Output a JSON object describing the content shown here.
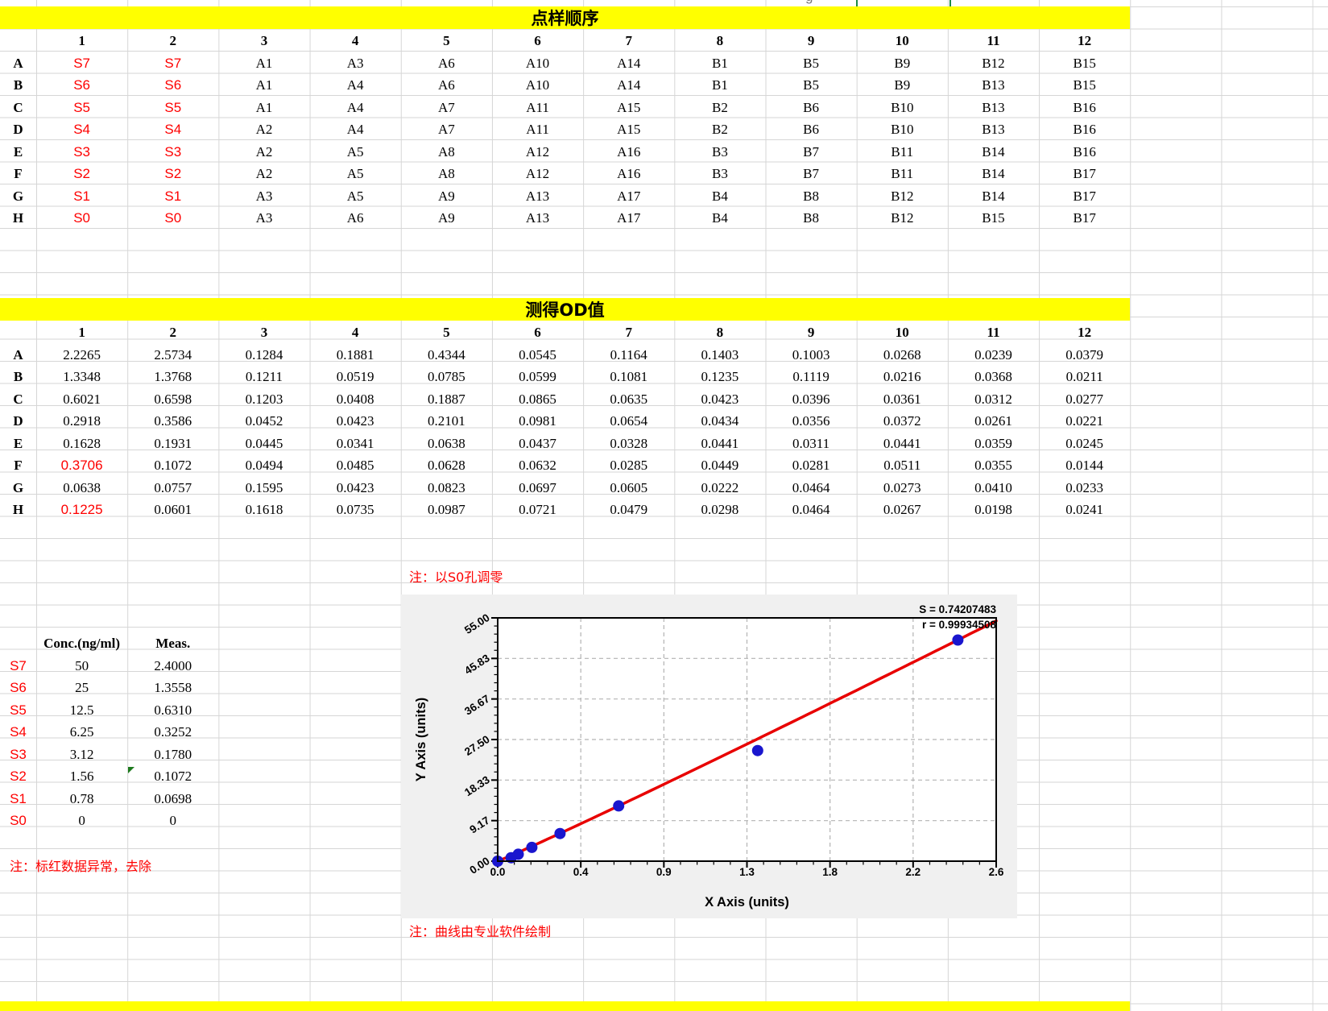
{
  "banners": {
    "plate_title": "点样顺序",
    "od_title": "测得OD值"
  },
  "plate_table": {
    "col_headers": [
      "1",
      "2",
      "3",
      "4",
      "5",
      "6",
      "7",
      "8",
      "9",
      "10",
      "11",
      "12"
    ],
    "row_headers": [
      "A",
      "B",
      "C",
      "D",
      "E",
      "F",
      "G",
      "H"
    ],
    "rows": [
      [
        "S7",
        "S7",
        "A1",
        "A3",
        "A6",
        "A10",
        "A14",
        "B1",
        "B5",
        "B9",
        "B12",
        "B15"
      ],
      [
        "S6",
        "S6",
        "A1",
        "A4",
        "A6",
        "A10",
        "A14",
        "B1",
        "B5",
        "B9",
        "B13",
        "B15"
      ],
      [
        "S5",
        "S5",
        "A1",
        "A4",
        "A7",
        "A11",
        "A15",
        "B2",
        "B6",
        "B10",
        "B13",
        "B16"
      ],
      [
        "S4",
        "S4",
        "A2",
        "A4",
        "A7",
        "A11",
        "A15",
        "B2",
        "B6",
        "B10",
        "B13",
        "B16"
      ],
      [
        "S3",
        "S3",
        "A2",
        "A5",
        "A8",
        "A12",
        "A16",
        "B3",
        "B7",
        "B11",
        "B14",
        "B16"
      ],
      [
        "S2",
        "S2",
        "A2",
        "A5",
        "A8",
        "A12",
        "A16",
        "B3",
        "B7",
        "B11",
        "B14",
        "B17"
      ],
      [
        "S1",
        "S1",
        "A3",
        "A5",
        "A9",
        "A13",
        "A17",
        "B4",
        "B8",
        "B12",
        "B14",
        "B17"
      ],
      [
        "S0",
        "S0",
        "A3",
        "A6",
        "A9",
        "A13",
        "A17",
        "B4",
        "B8",
        "B12",
        "B15",
        "B17"
      ]
    ],
    "red_columns": [
      0,
      1
    ]
  },
  "od_table": {
    "col_headers": [
      "1",
      "2",
      "3",
      "4",
      "5",
      "6",
      "7",
      "8",
      "9",
      "10",
      "11",
      "12"
    ],
    "row_headers": [
      "A",
      "B",
      "C",
      "D",
      "E",
      "F",
      "G",
      "H"
    ],
    "rows": [
      [
        "2.2265",
        "2.5734",
        "0.1284",
        "0.1881",
        "0.4344",
        "0.0545",
        "0.1164",
        "0.1403",
        "0.1003",
        "0.0268",
        "0.0239",
        "0.0379"
      ],
      [
        "1.3348",
        "1.3768",
        "0.1211",
        "0.0519",
        "0.0785",
        "0.0599",
        "0.1081",
        "0.1235",
        "0.1119",
        "0.0216",
        "0.0368",
        "0.0211"
      ],
      [
        "0.6021",
        "0.6598",
        "0.1203",
        "0.0408",
        "0.1887",
        "0.0865",
        "0.0635",
        "0.0423",
        "0.0396",
        "0.0361",
        "0.0312",
        "0.0277"
      ],
      [
        "0.2918",
        "0.3586",
        "0.0452",
        "0.0423",
        "0.2101",
        "0.0981",
        "0.0654",
        "0.0434",
        "0.0356",
        "0.0372",
        "0.0261",
        "0.0221"
      ],
      [
        "0.1628",
        "0.1931",
        "0.0445",
        "0.0341",
        "0.0638",
        "0.0437",
        "0.0328",
        "0.0441",
        "0.0311",
        "0.0441",
        "0.0359",
        "0.0245"
      ],
      [
        "0.3706",
        "0.1072",
        "0.0494",
        "0.0485",
        "0.0628",
        "0.0632",
        "0.0285",
        "0.0449",
        "0.0281",
        "0.0511",
        "0.0355",
        "0.0144"
      ],
      [
        "0.0638",
        "0.0757",
        "0.1595",
        "0.0423",
        "0.0823",
        "0.0697",
        "0.0605",
        "0.0222",
        "0.0464",
        "0.0273",
        "0.0410",
        "0.0233"
      ],
      [
        "0.1225",
        "0.0601",
        "0.1618",
        "0.0735",
        "0.0987",
        "0.0721",
        "0.0479",
        "0.0298",
        "0.0464",
        "0.0267",
        "0.0198",
        "0.0241"
      ]
    ],
    "red_cells": [
      [
        5,
        0
      ],
      [
        7,
        0
      ]
    ]
  },
  "standards_table": {
    "col_headers": [
      "Conc.(ng/ml)",
      "Meas."
    ],
    "rows": [
      {
        "label": "S7",
        "conc": "50",
        "meas": "2.4000"
      },
      {
        "label": "S6",
        "conc": "25",
        "meas": "1.3558"
      },
      {
        "label": "S5",
        "conc": "12.5",
        "meas": "0.6310"
      },
      {
        "label": "S4",
        "conc": "6.25",
        "meas": "0.3252"
      },
      {
        "label": "S3",
        "conc": "3.12",
        "meas": "0.1780"
      },
      {
        "label": "S2",
        "conc": "1.56",
        "meas": "0.1072"
      },
      {
        "label": "S1",
        "conc": "0.78",
        "meas": "0.0698"
      },
      {
        "label": "S0",
        "conc": "0",
        "meas": "0"
      }
    ],
    "error_marker_row": "S2"
  },
  "notes": {
    "note_zero": "注：以S0孔调零",
    "note_red": "注：标红数据异常，去除",
    "note_curve": "注：曲线由专业软件绘制"
  },
  "chart_data": {
    "type": "scatter",
    "xlabel": "X Axis (units)",
    "ylabel": "Y Axis (units)",
    "xlim": [
      0,
      2.6
    ],
    "ylim": [
      0,
      55
    ],
    "x_tick_labels": [
      "0.0",
      "0.4",
      "0.9",
      "1.3",
      "1.8",
      "2.2",
      "2.6"
    ],
    "y_tick_labels": [
      "0.00",
      "9.17",
      "18.33",
      "27.50",
      "36.67",
      "45.83",
      "55.00"
    ],
    "grid": true,
    "stats_s": "S = 0.74207483",
    "stats_r": "r = 0.99934508",
    "points": [
      {
        "x": 0,
        "y": 0
      },
      {
        "x": 0.0698,
        "y": 0.78
      },
      {
        "x": 0.1072,
        "y": 1.56
      },
      {
        "x": 0.178,
        "y": 3.12
      },
      {
        "x": 0.3252,
        "y": 6.25
      },
      {
        "x": 0.631,
        "y": 12.5
      },
      {
        "x": 1.3558,
        "y": 25
      },
      {
        "x": 2.4,
        "y": 50
      }
    ],
    "fit_type": "power",
    "point_color": "#1a16ce",
    "line_color": "#e80000"
  }
}
